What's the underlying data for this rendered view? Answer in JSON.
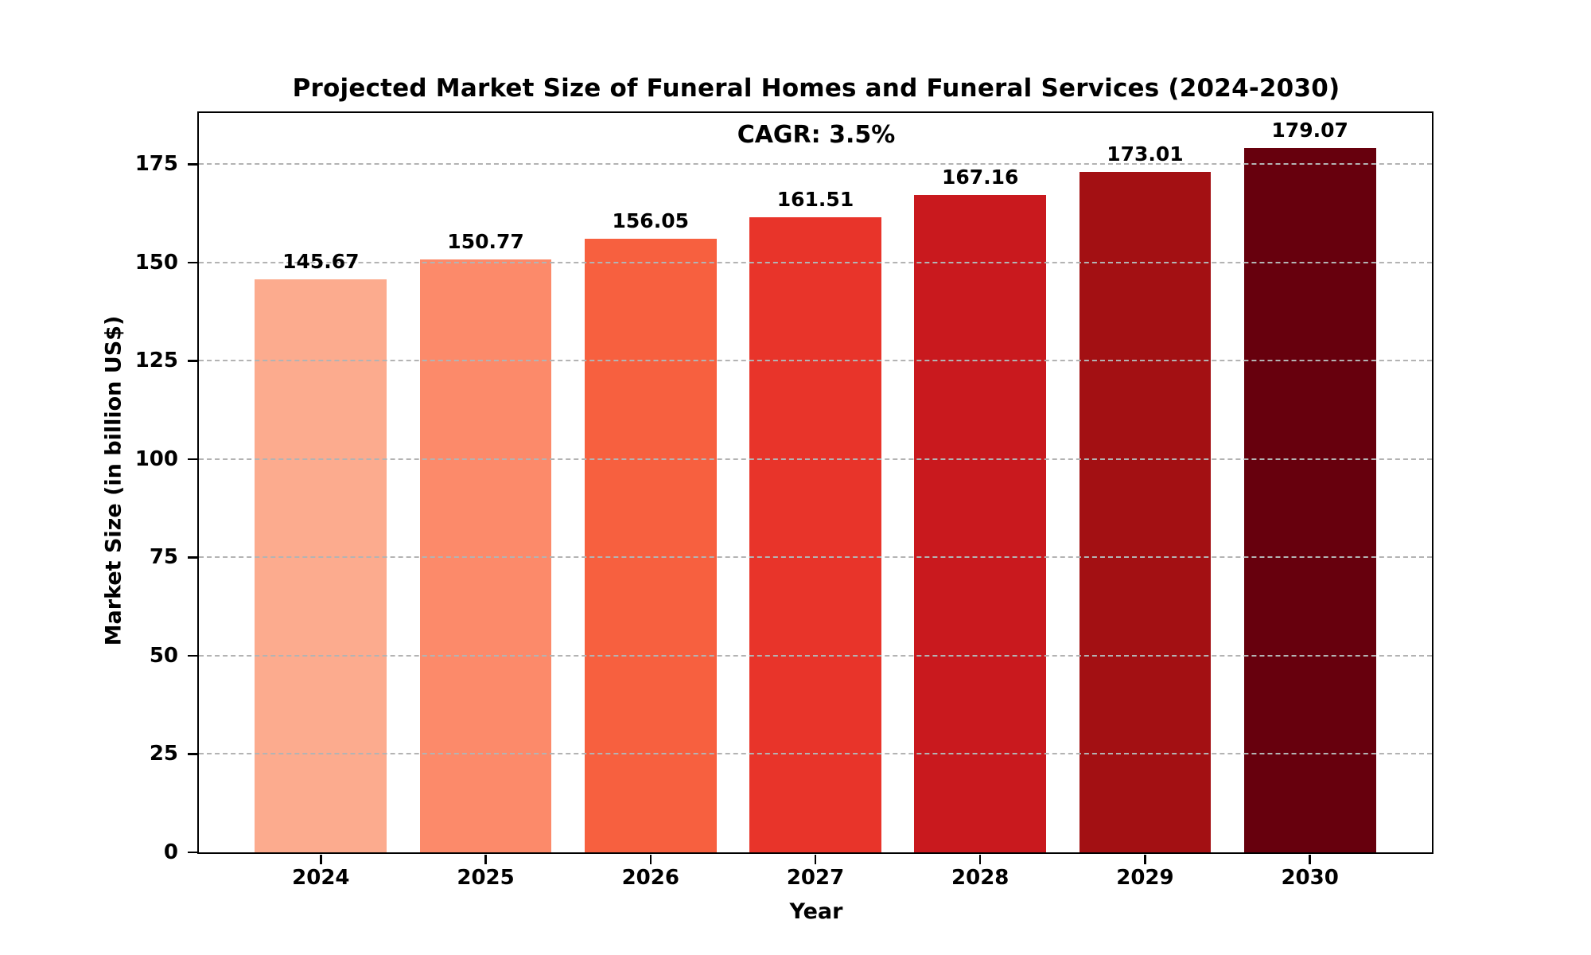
{
  "chart_data": {
    "type": "bar",
    "title": "Projected Market Size of Funeral Homes and Funeral Services (2024-2030)",
    "subtitle": "CAGR: 3.5%",
    "categories": [
      "2024",
      "2025",
      "2026",
      "2027",
      "2028",
      "2029",
      "2030"
    ],
    "values": [
      145.67,
      150.77,
      156.05,
      161.51,
      167.16,
      173.01,
      179.07
    ],
    "value_labels": [
      "145.67",
      "150.77",
      "156.05",
      "161.51",
      "167.16",
      "173.01",
      "179.07"
    ],
    "bar_colors": [
      "#fcab8e",
      "#fc8a6a",
      "#f7603f",
      "#e8342a",
      "#c9191e",
      "#a31013",
      "#67000d"
    ],
    "xlabel": "Year",
    "ylabel": "Market Size (in billion US$)",
    "yticks": [
      0,
      25,
      50,
      75,
      100,
      125,
      150,
      175
    ],
    "ylim": [
      0,
      188.02
    ],
    "grid": "horizontal-dashed",
    "gridline_color": "#b3b3b3",
    "background_color": "#ffffff",
    "axis_color": "#000000",
    "legend": "none"
  }
}
